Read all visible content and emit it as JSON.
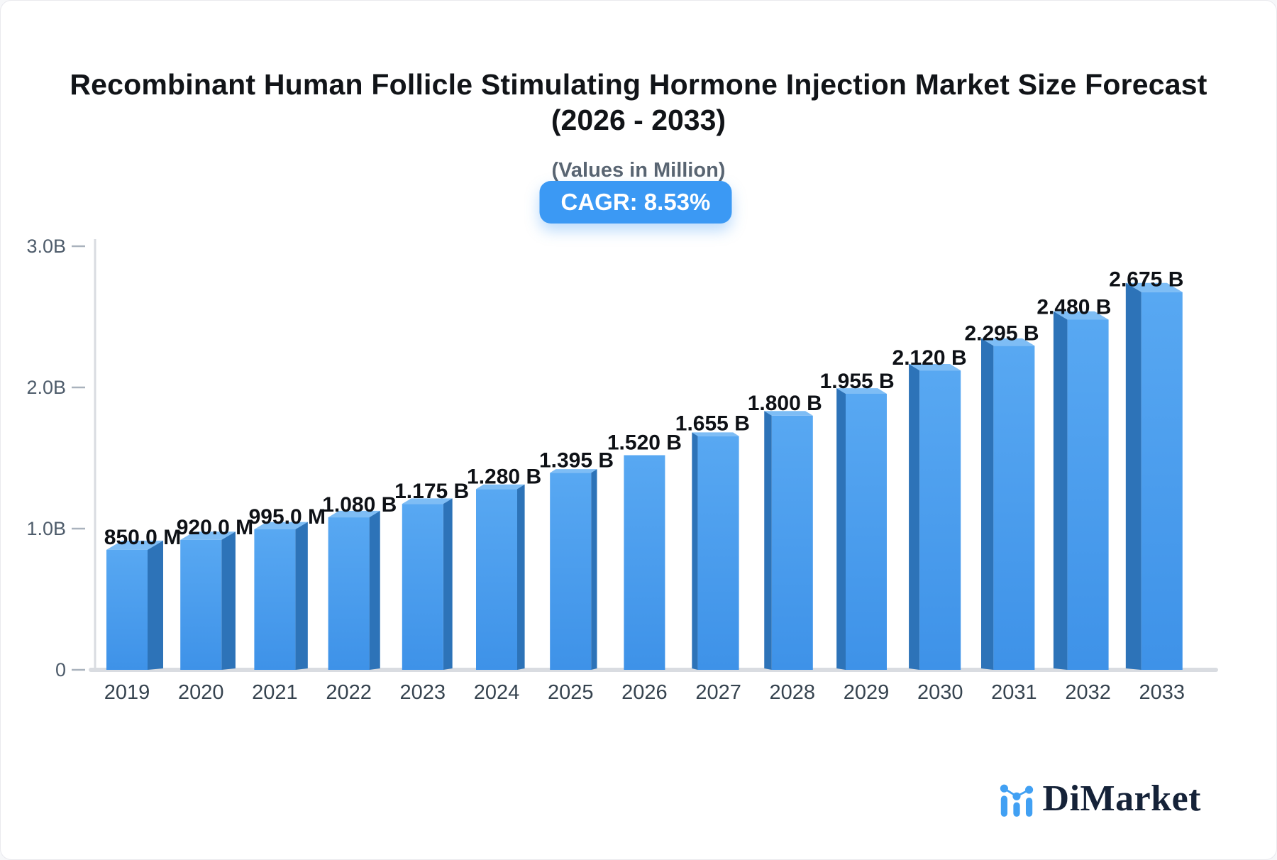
{
  "header": {
    "title_line1": "Recombinant Human Follicle Stimulating Hormone Injection Market Size Forecast",
    "title_line2": "(2026 - 2033)",
    "subtitle": "(Values in Million)",
    "cagr_badge": "CAGR: 8.53%"
  },
  "chart_data": {
    "type": "bar",
    "title": "Recombinant Human Follicle Stimulating Hormone Injection Market Size Forecast (2026 - 2033)",
    "subtitle": "(Values in Million)",
    "cagr_percent": 8.53,
    "xlabel": "",
    "ylabel": "",
    "categories": [
      2019,
      2020,
      2021,
      2022,
      2023,
      2024,
      2025,
      2026,
      2027,
      2028,
      2029,
      2030,
      2031,
      2032,
      2033
    ],
    "values_millions": [
      850,
      920,
      995,
      1080,
      1175,
      1280,
      1395,
      1520,
      1655,
      1800,
      1955,
      2120,
      2295,
      2480,
      2675
    ],
    "value_labels": [
      "850.0 M",
      "920.0 M",
      "995.0 M",
      "1.080 B",
      "1.175 B",
      "1.280 B",
      "1.395 B",
      "1.520 B",
      "1.655 B",
      "1.800 B",
      "1.955 B",
      "2.120 B",
      "2.295 B",
      "2.480 B",
      "2.675 B"
    ],
    "yticks": [
      {
        "label": "0",
        "millions": 0
      },
      {
        "label": "1.0B",
        "millions": 1000
      },
      {
        "label": "2.0B",
        "millions": 2000
      },
      {
        "label": "3.0B",
        "millions": 3000
      }
    ],
    "ylim_millions": [
      0,
      3000
    ],
    "grid": "off",
    "legend": "none",
    "style": "3d-perspective-columns",
    "colors": {
      "bar_front_top": "#58a8f2",
      "bar_front_bottom": "#3e92e8",
      "bar_side": "#2d73b8",
      "bar_top": "#7ebdf5",
      "axis": "#d9dce1",
      "tick_dash": "#a9b2bd"
    }
  },
  "colors": {
    "badge_bg": "#3b99f4",
    "logo_icon": "#41a0f3",
    "logo_text": "#152238"
  },
  "footer": {
    "logo_text": "DiMarket"
  }
}
